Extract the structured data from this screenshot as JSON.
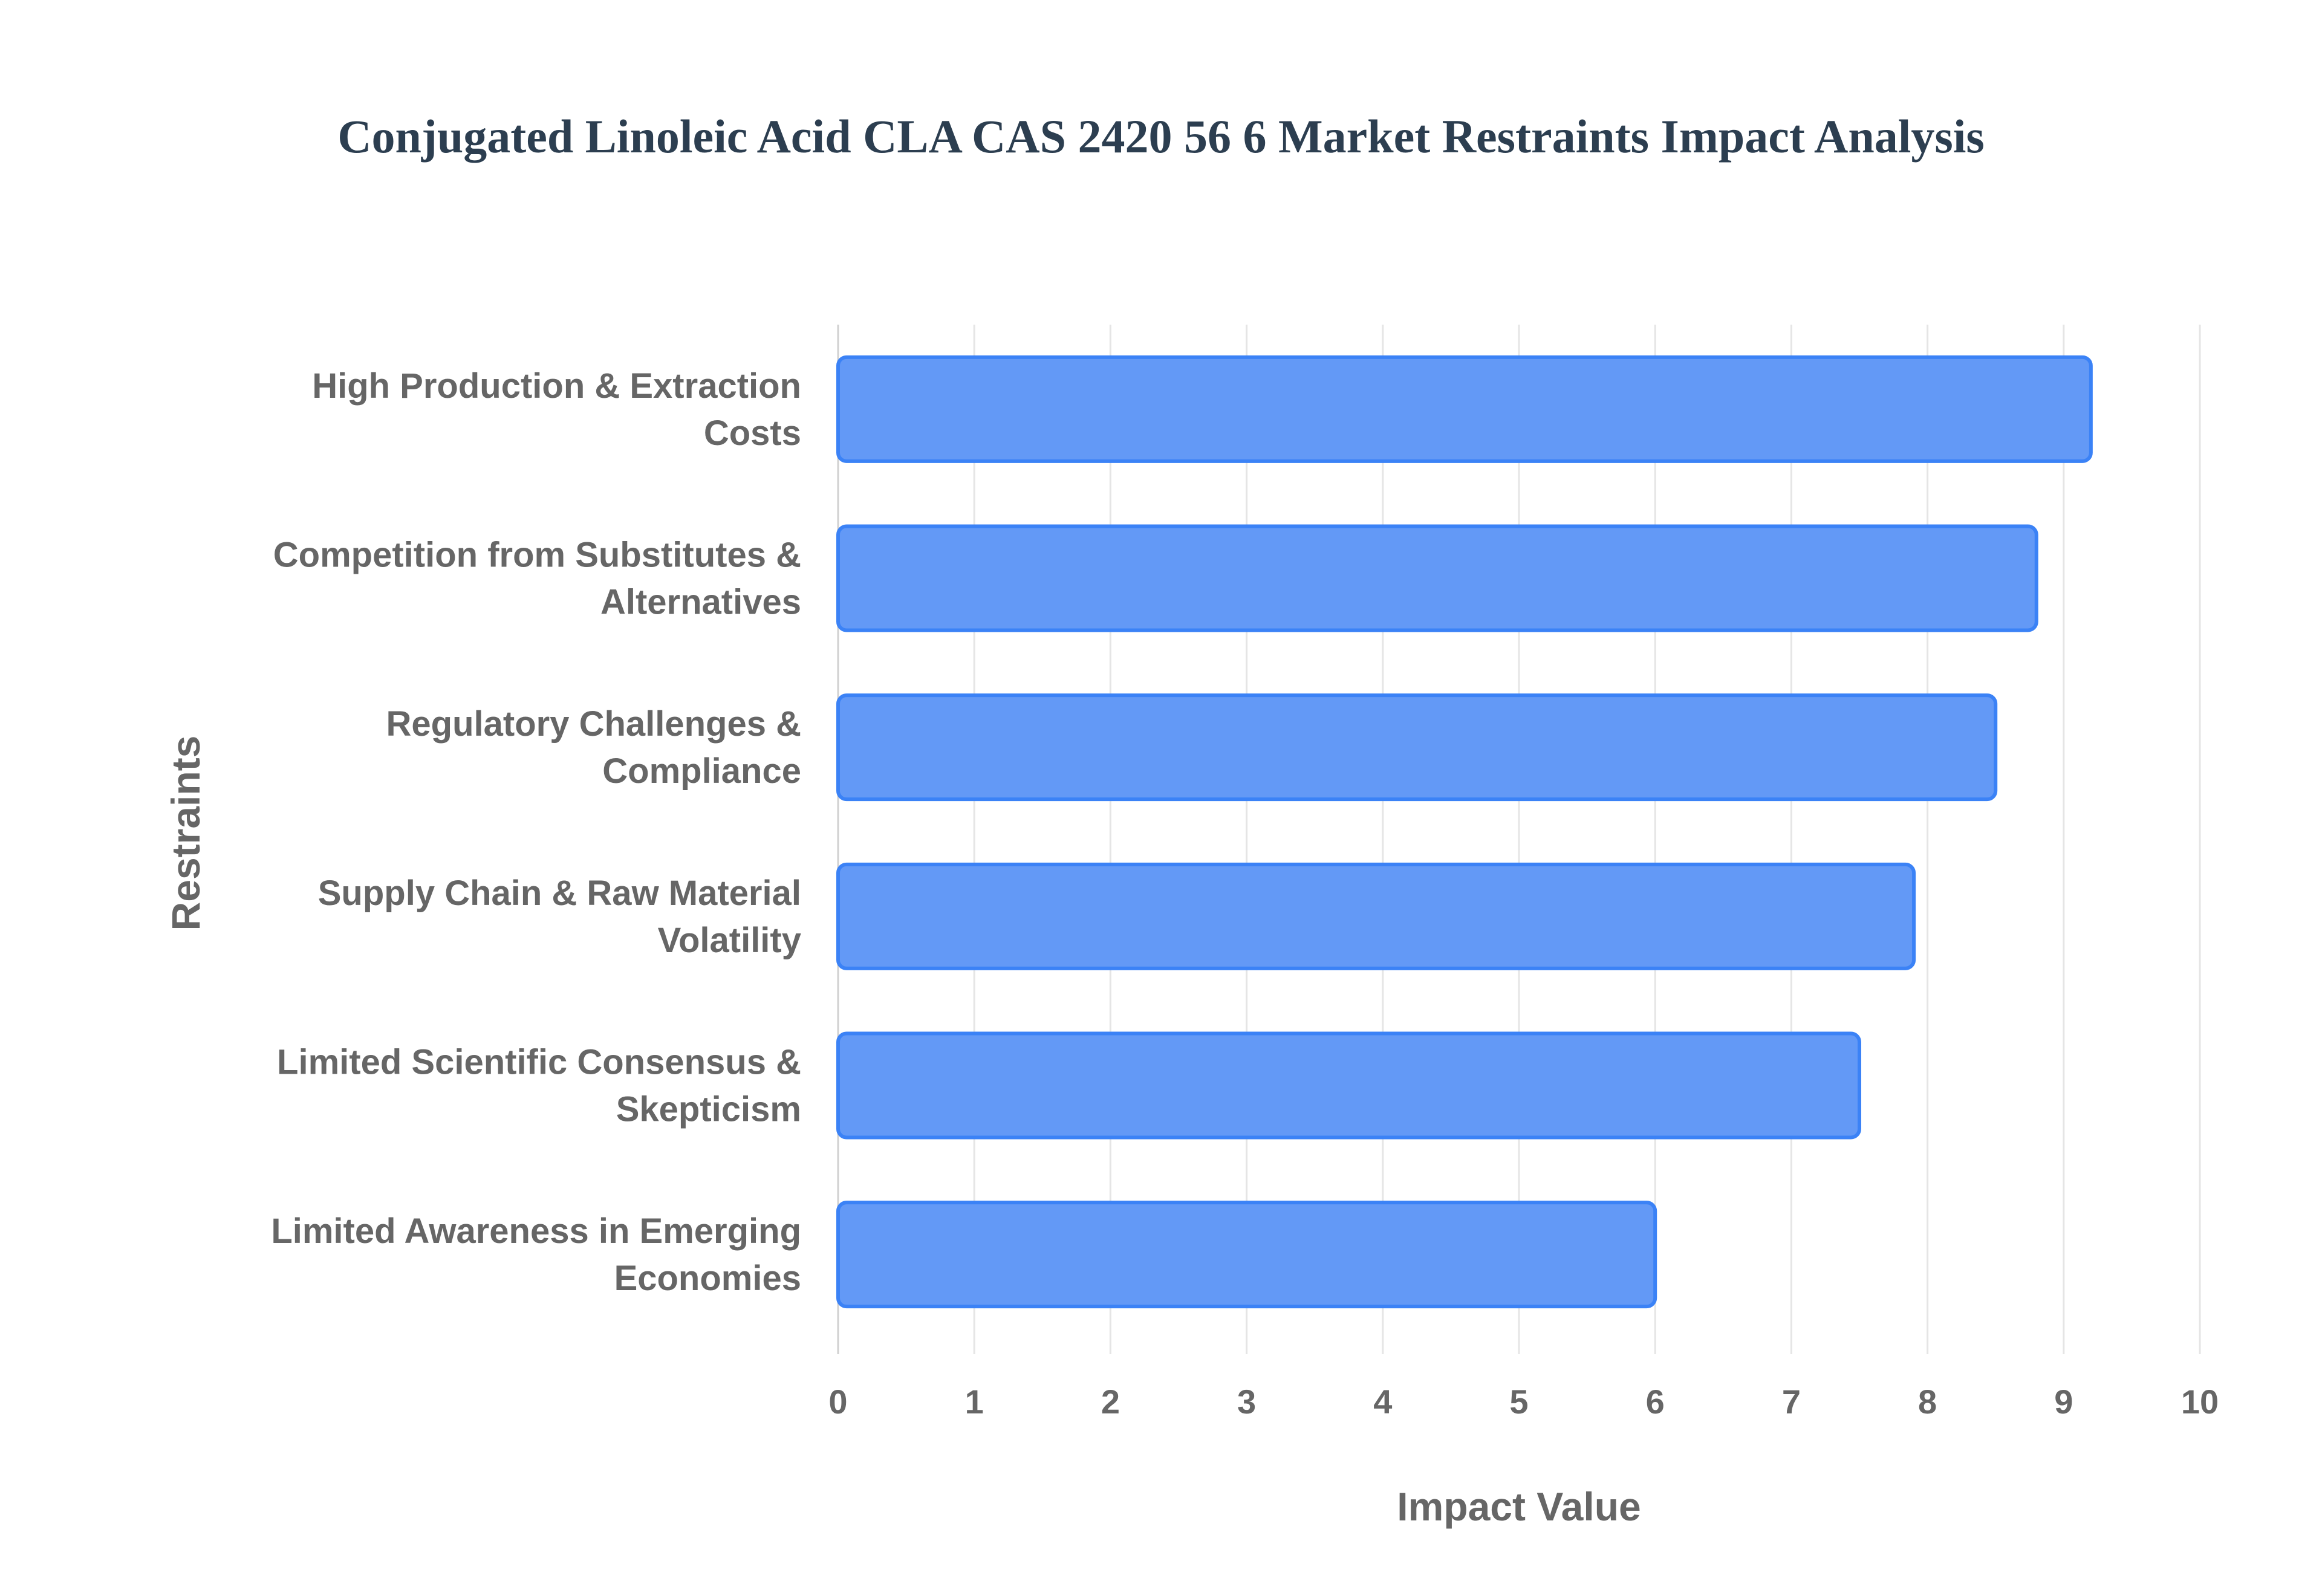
{
  "chart_data": {
    "type": "bar",
    "orientation": "horizontal",
    "title": "Conjugated Linoleic Acid CLA CAS 2420 56 6 Market Restraints Impact Analysis",
    "xlabel": "Impact Value",
    "ylabel": "Restraints",
    "categories": [
      [
        "High Production & Extraction",
        "Costs"
      ],
      [
        "Competition from Substitutes &",
        "Alternatives"
      ],
      [
        "Regulatory Challenges &",
        "Compliance"
      ],
      [
        "Supply Chain & Raw Material",
        "Volatility"
      ],
      [
        "Limited Scientific Consensus &",
        "Skepticism"
      ],
      [
        "Limited Awareness in Emerging",
        "Economies"
      ]
    ],
    "values": [
      9.2,
      8.8,
      8.5,
      7.9,
      7.5,
      6.0
    ],
    "xlim": [
      0,
      10
    ],
    "xticks": [
      "0",
      "1",
      "2",
      "3",
      "4",
      "5",
      "6",
      "7",
      "8",
      "9",
      "10"
    ],
    "grid": true,
    "colors": {
      "bar_fill": "#6399f6",
      "bar_border": "#3b82f6",
      "grid": "#e5e5e5"
    }
  }
}
